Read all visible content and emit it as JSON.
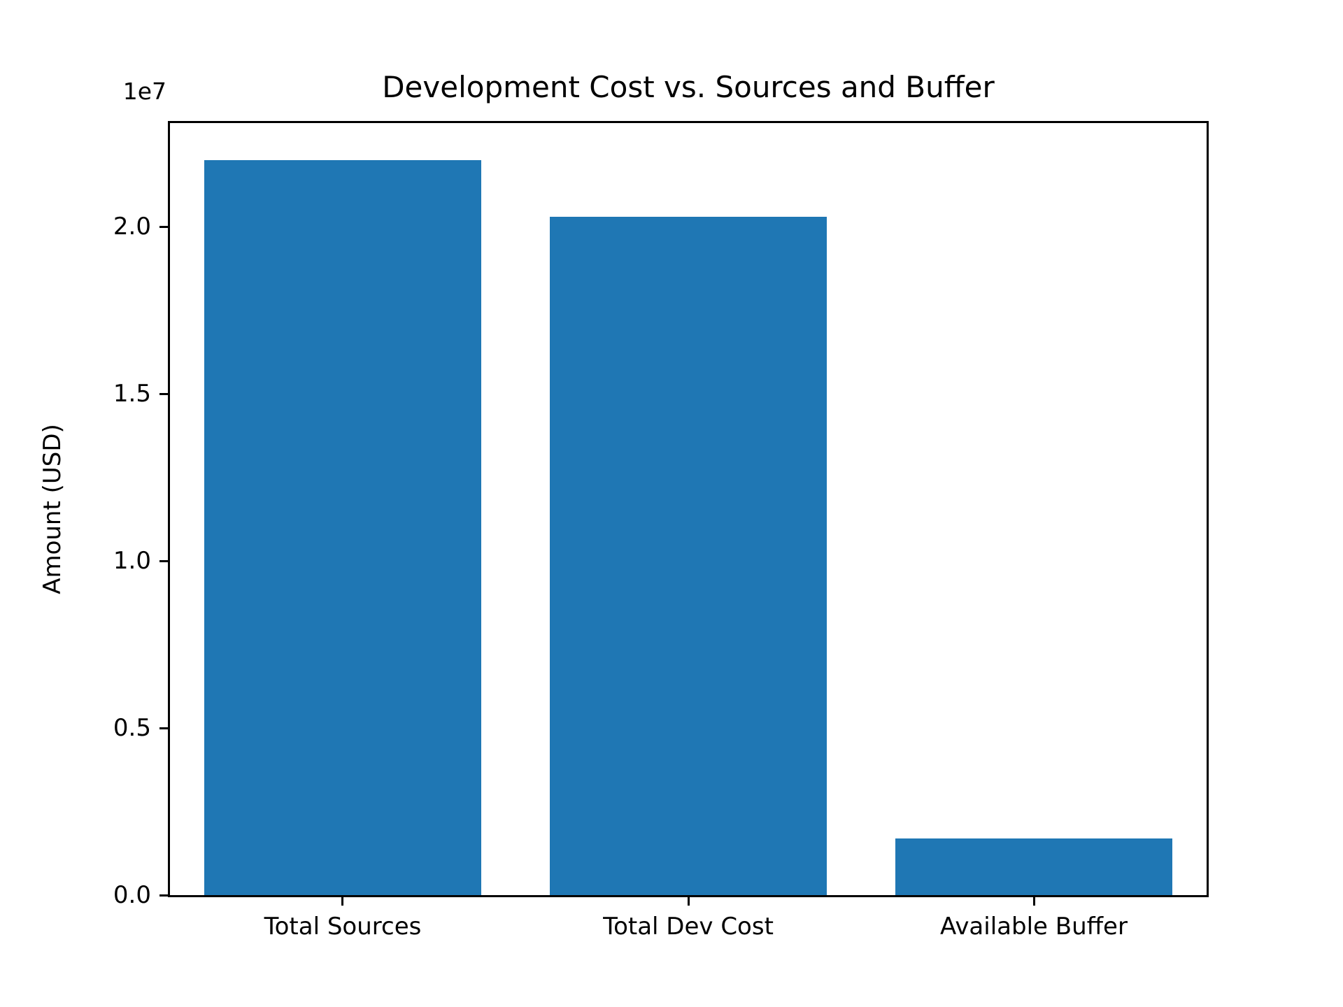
{
  "chart_data": {
    "type": "bar",
    "title": "Development Cost vs. Sources and Buffer",
    "xlabel": "",
    "ylabel": "Amount (USD)",
    "offset_label": "1e7",
    "categories": [
      "Total Sources",
      "Total Dev Cost",
      "Available Buffer"
    ],
    "values": [
      22000000,
      20300000,
      1700000
    ],
    "ytick_labels": [
      "0.0",
      "0.5",
      "1.0",
      "1.5",
      "2.0"
    ],
    "ytick_values": [
      0,
      5000000,
      10000000,
      15000000,
      20000000
    ],
    "ylim": [
      0,
      23100000
    ],
    "bar_color": "#1f77b4",
    "bar_width_fraction": 0.8,
    "grid": false,
    "legend_position": "none"
  }
}
